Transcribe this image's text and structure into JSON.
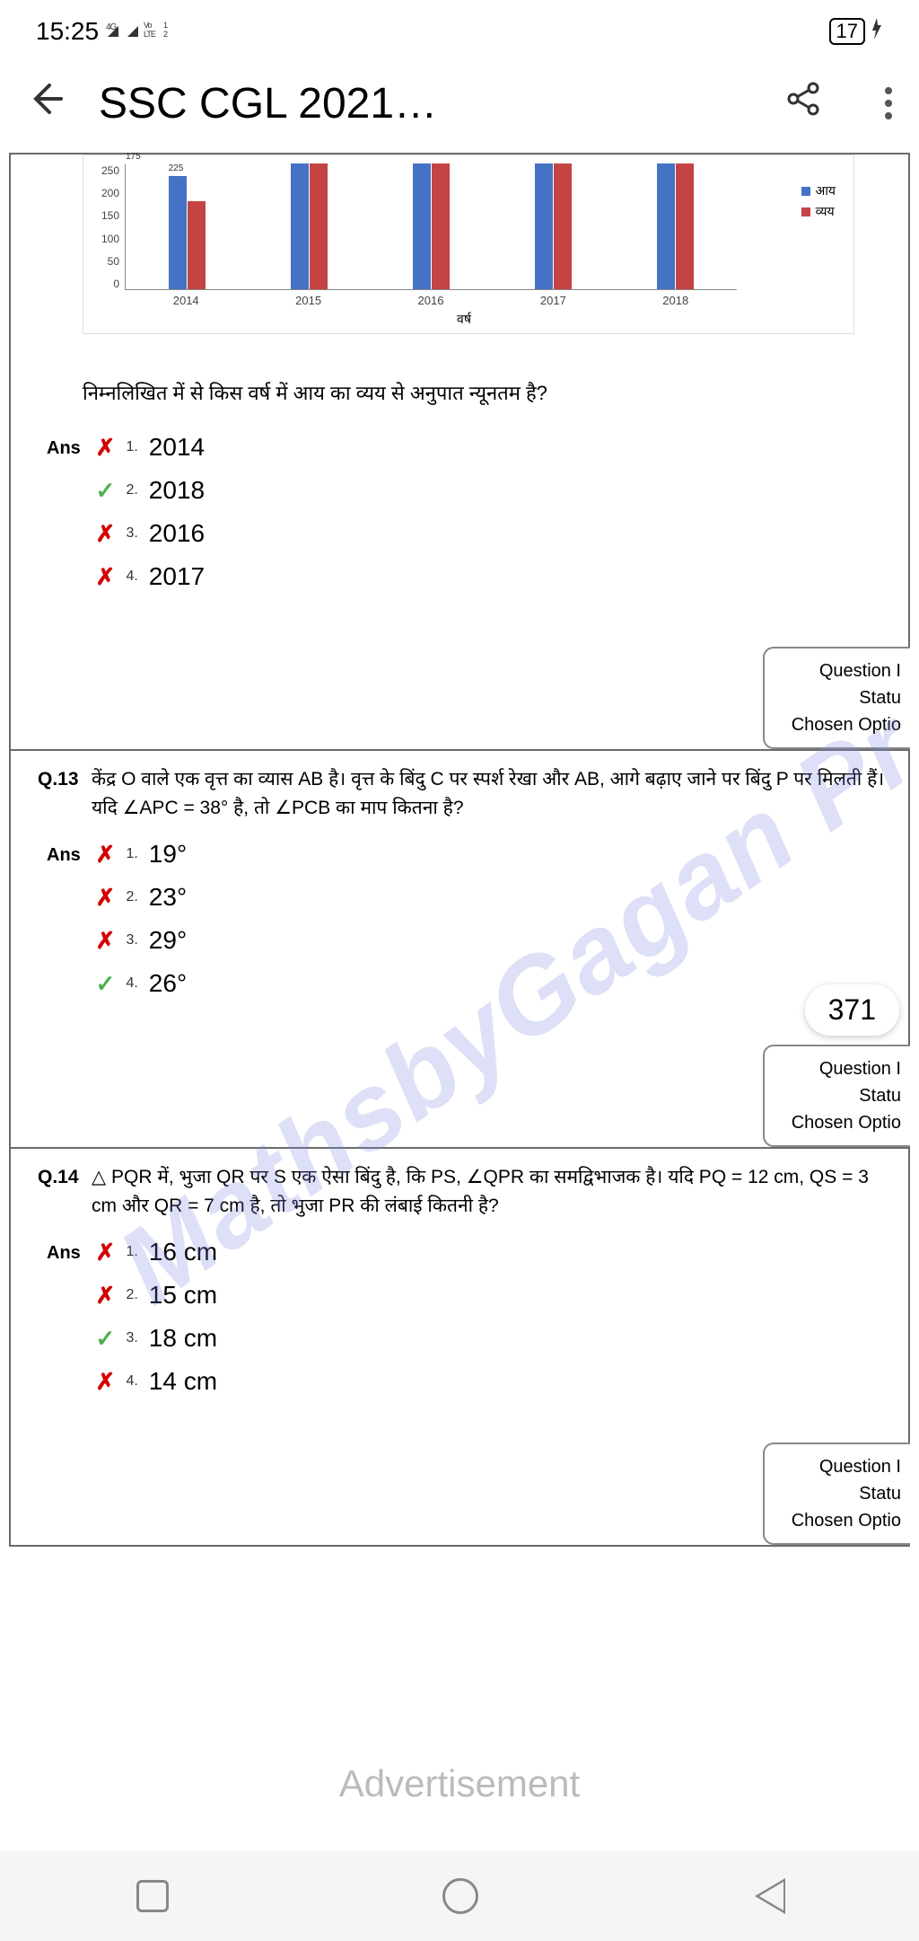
{
  "status": {
    "time": "15:25",
    "signals": "⁴ᴳ📶 📶 ⱽᵒ ᴸᵀᴱ",
    "battery_text": "17",
    "charge_icon": "⚡"
  },
  "header": {
    "title": "SSC CGL 2021…"
  },
  "chart": {
    "type": "bar",
    "y_ticks": [
      "250",
      "200",
      "150",
      "100",
      "50",
      "0"
    ],
    "categories": [
      "2014",
      "2015",
      "2016",
      "2017",
      "2018"
    ],
    "x_title": "वर्ष",
    "series1_label": "आय",
    "series2_label": "व्यय",
    "series1_color": "#4472c4",
    "series2_color": "#c44444",
    "series1_values": [
      225,
      250,
      250,
      250,
      250
    ],
    "series2_values": [
      175,
      250,
      250,
      250,
      250
    ],
    "bar1_label": "225",
    "bar2_label": "175",
    "ymax": 250
  },
  "q12": {
    "text": "निम्नलिखित में से किस वर्ष में आय का व्यय से अनुपात न्यूनतम है?",
    "ans_label": "Ans",
    "options": [
      {
        "num": "1.",
        "text": "2014",
        "mark": "✗",
        "correct": false
      },
      {
        "num": "2.",
        "text": "2018",
        "mark": "✓",
        "correct": true
      },
      {
        "num": "3.",
        "text": "2016",
        "mark": "✗",
        "correct": false
      },
      {
        "num": "4.",
        "text": "2017",
        "mark": "✗",
        "correct": false
      }
    ]
  },
  "q13": {
    "num": "Q.13",
    "text": "केंद्र O वाले एक वृत्त का व्यास AB है। वृत्त के बिंदु C पर स्पर्श रेखा और AB, आगे बढ़ाए जाने पर बिंदु P पर मिलती हैं। यदि ∠APC = 38° है, तो ∠PCB का माप कितना है?",
    "ans_label": "Ans",
    "options": [
      {
        "num": "1.",
        "text": "19°",
        "mark": "✗",
        "correct": false
      },
      {
        "num": "2.",
        "text": "23°",
        "mark": "✗",
        "correct": false
      },
      {
        "num": "3.",
        "text": "29°",
        "mark": "✗",
        "correct": false
      },
      {
        "num": "4.",
        "text": "26°",
        "mark": "✓",
        "correct": true
      }
    ]
  },
  "q14": {
    "num": "Q.14",
    "text": "△ PQR में, भुजा QR पर S एक ऐसा बिंदु है, कि PS, ∠QPR का समद्विभाजक है। यदि PQ = 12 cm, QS = 3 cm और QR = 7 cm है, तो भुजा PR की लंबाई कितनी है?",
    "ans_label": "Ans",
    "options": [
      {
        "num": "1.",
        "text": "16 cm",
        "mark": "✗",
        "correct": false
      },
      {
        "num": "2.",
        "text": "15 cm",
        "mark": "✗",
        "correct": false
      },
      {
        "num": "3.",
        "text": "18 cm",
        "mark": "✓",
        "correct": true
      },
      {
        "num": "4.",
        "text": "14 cm",
        "mark": "✗",
        "correct": false
      }
    ]
  },
  "info_box": {
    "line1": "Question I",
    "line2": "Statu",
    "line3": "Chosen Optio"
  },
  "badge": "371",
  "watermark": "MathsbyGagan Pr",
  "advertisement": "Advertisement"
}
